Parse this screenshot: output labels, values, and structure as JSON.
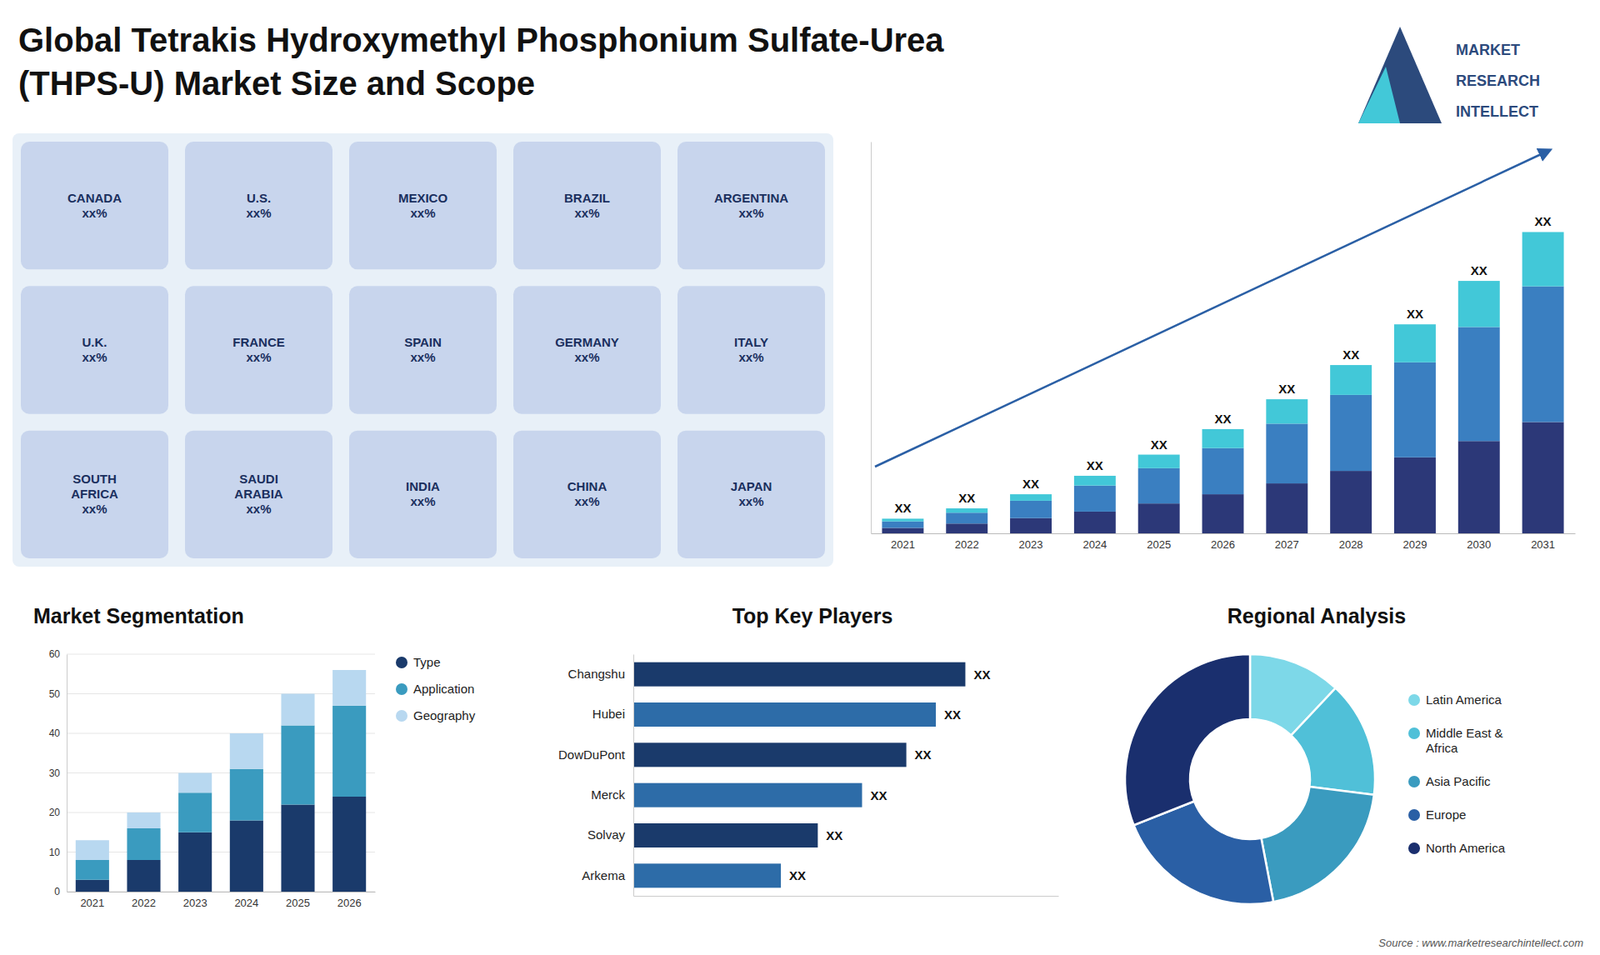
{
  "chart_data": [
    {
      "type": "bar",
      "title": "Global Tetrakis Hydroxymethyl Phosphonium Sulfate-Urea\n(THPS-U) Market Size and Scope",
      "stacked": true,
      "categories": [
        2021,
        2022,
        2023,
        2024,
        2025,
        2026,
        2027,
        2028,
        2029,
        2030,
        2031
      ],
      "series": [
        {
          "color": "#2c3878",
          "values": [
            1.0,
            1.8,
            2.8,
            4.0,
            5.5,
            7.2,
            9.2,
            11.5,
            14.0,
            17.0,
            20.5
          ]
        },
        {
          "color": "#3a7fc1",
          "values": [
            1.2,
            2.0,
            3.2,
            4.8,
            6.5,
            8.5,
            11.0,
            14.0,
            17.5,
            21.0,
            25.0
          ]
        },
        {
          "color": "#42c8d8",
          "values": [
            0.5,
            0.8,
            1.2,
            1.8,
            2.5,
            3.5,
            4.5,
            5.5,
            7.0,
            8.5,
            10.0
          ],
          "value_labels": [
            "XX",
            "XX",
            "XX",
            "XX",
            "XX",
            "XX",
            "XX",
            "XX",
            "XX",
            "XX",
            "XX"
          ]
        }
      ],
      "ylim": [
        0,
        72.15
      ],
      "tick_labels": "x",
      "grid": false,
      "annotations": [
        "MARKET",
        "RESEARCH",
        "INTELLECT",
        "Source : www.marketresearchintellect.com"
      ]
    },
    {
      "type": "bar",
      "title": "Market Segmentation",
      "stacked": true,
      "categories": [
        2021,
        2022,
        2023,
        2024,
        2025,
        2026
      ],
      "series": [
        {
          "name": "Type",
          "color": "#1a3a6b",
          "values": [
            3,
            8,
            15,
            18,
            22,
            24
          ]
        },
        {
          "name": "Application",
          "color": "#3a9bbf",
          "values": [
            5,
            8,
            10,
            13,
            20,
            23
          ]
        },
        {
          "name": "Geography",
          "color": "#b8d8f0",
          "values": [
            5,
            4,
            5,
            9,
            8,
            9
          ]
        }
      ],
      "ylim": [
        0,
        60
      ],
      "yticks": [
        0,
        10,
        20,
        30,
        40,
        50,
        60
      ],
      "grid": true,
      "legend": "right"
    },
    {
      "type": "bar",
      "orientation": "horizontal",
      "title": "Top Key Players",
      "categories": [
        "Changshu",
        "Hubei",
        "DowDuPont",
        "Merck",
        "Solvay",
        "Arkema"
      ],
      "values": [
        90,
        82,
        74,
        62,
        50,
        40
      ],
      "value_labels": [
        "XX",
        "XX",
        "XX",
        "XX",
        "XX",
        "XX"
      ],
      "colors": [
        "#1a3a6b",
        "#2d6ca8",
        "#1a3a6b",
        "#2d6ca8",
        "#1a3a6b",
        "#2d6ca8"
      ],
      "xlim": [
        0,
        115.2
      ],
      "tick_labels": "y",
      "grid": false
    },
    {
      "type": "donut",
      "title": "Regional Analysis",
      "categories": [
        "Latin America",
        "Middle East &\nAfrica",
        "Asia Pacific",
        "Europe",
        "North America"
      ],
      "values": [
        12,
        15,
        20,
        22,
        31
      ],
      "colors": [
        "#7dd8e8",
        "#50c0d8",
        "#3a9bbf",
        "#2a5fa5",
        "#1a2f6e"
      ],
      "legend": "right"
    },
    {
      "type": "map",
      "annotations": [
        "CANADA\nxx%",
        "U.S.\nxx%",
        "MEXICO\nxx%",
        "BRAZIL\nxx%",
        "ARGENTINA\nxx%",
        "U.K.\nxx%",
        "FRANCE\nxx%",
        "SPAIN\nxx%",
        "GERMANY\nxx%",
        "ITALY\nxx%",
        "SOUTH\nAFRICA\nxx%",
        "SAUDI\nARABIA\nxx%",
        "INDIA\nxx%",
        "CHINA\nxx%",
        "JAPAN\nxx%"
      ]
    }
  ]
}
